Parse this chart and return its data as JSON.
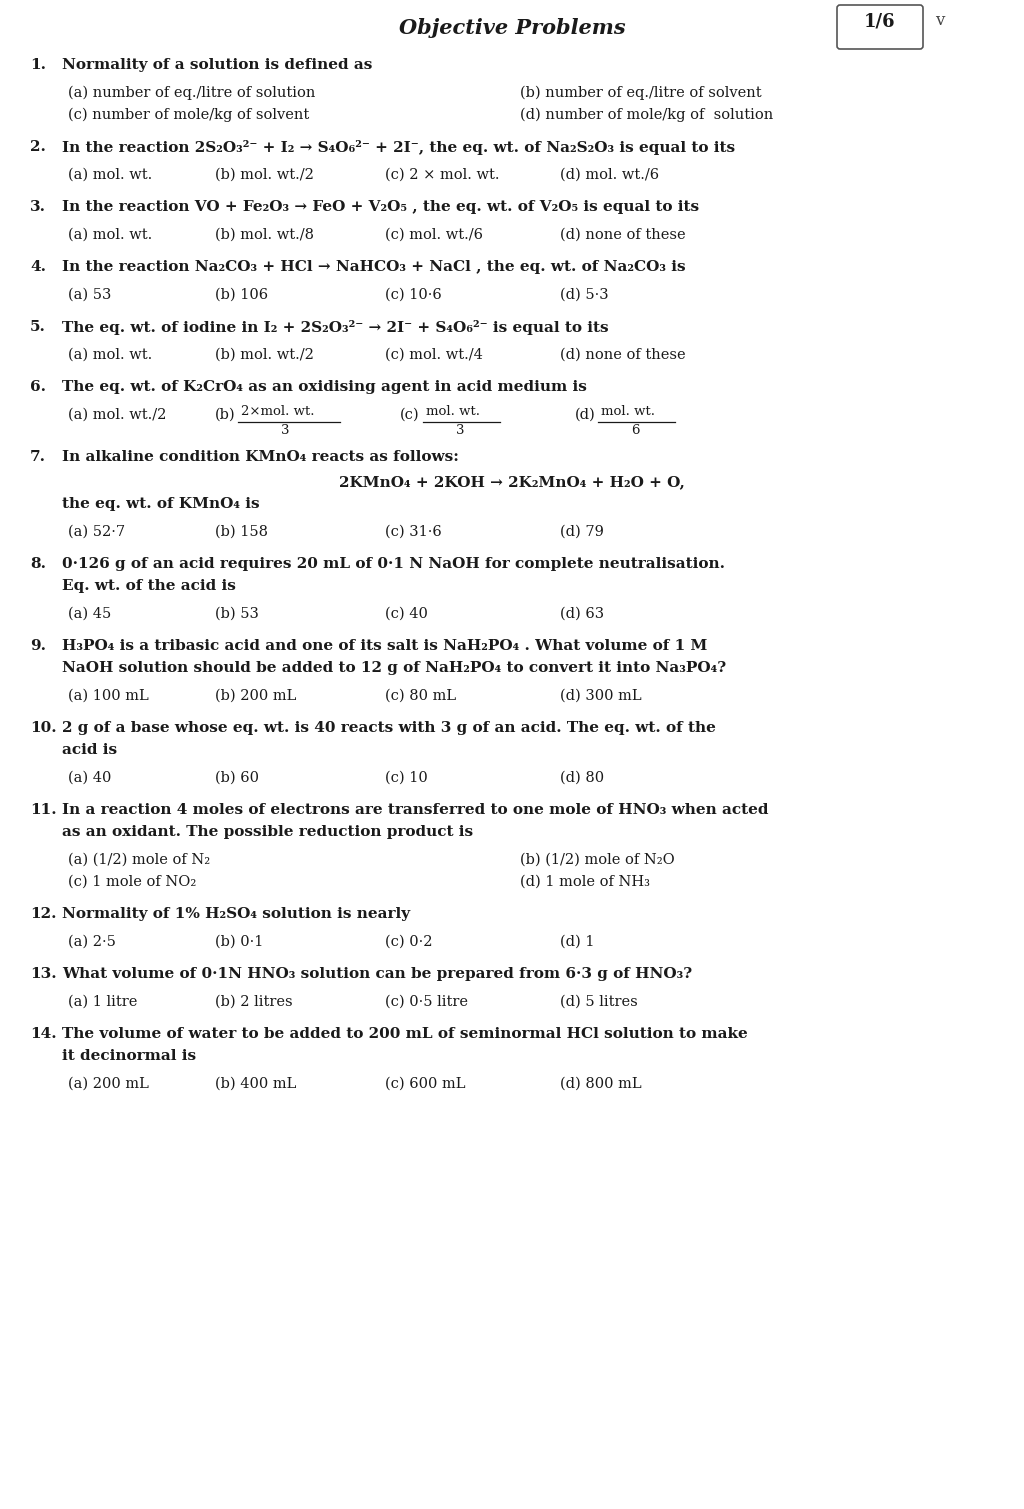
{
  "title": "Objective Problems",
  "page_indicator": "1/6",
  "background_color": "#ffffff",
  "text_color": "#1a1a1a",
  "title_fontsize": 15,
  "body_fontsize": 11,
  "small_fontsize": 10.5,
  "questions": [
    {
      "num": "1.",
      "text": "Normality of a solution is defined as",
      "type": "2col",
      "options": [
        "(a) number of eq./litre of solution",
        "(b) number of eq./litre of solvent",
        "(c) number of mole/kg of solvent",
        "(d) number of mole/kg of  solution"
      ]
    },
    {
      "num": "2.",
      "text": "In the reaction 2S₂O₃²⁻ + I₂ → S₄O₆²⁻ + 2I⁻, the eq. wt. of Na₂S₂O₃ is equal to its",
      "type": "1row",
      "options": [
        "(a) mol. wt.",
        "(b) mol. wt./2",
        "(c) 2 × mol. wt.",
        "(d) mol. wt./6"
      ]
    },
    {
      "num": "3.",
      "text": "In the reaction VO + Fe₂O₃ → FeO + V₂O₅ , the eq. wt. of V₂O₅ is equal to its",
      "type": "1row",
      "options": [
        "(a) mol. wt.",
        "(b) mol. wt./8",
        "(c) mol. wt./6",
        "(d) none of these"
      ]
    },
    {
      "num": "4.",
      "text": "In the reaction Na₂CO₃ + HCl → NaHCO₃ + NaCl , the eq. wt. of Na₂CO₃ is",
      "type": "1row",
      "options": [
        "(a) 53",
        "(b) 106",
        "(c) 10·6",
        "(d) 5·3"
      ]
    },
    {
      "num": "5.",
      "text": "The eq. wt. of iodine in I₂ + 2S₂O₃²⁻ → 2I⁻ + S₄O₆²⁻ is equal to its",
      "type": "1row",
      "options": [
        "(a) mol. wt.",
        "(b) mol. wt./2",
        "(c) mol. wt./4",
        "(d) none of these"
      ]
    },
    {
      "num": "6.",
      "text": "The eq. wt. of K₂CrO₄ as an oxidising agent in acid medium is",
      "type": "frac",
      "options": [
        "(a) mol. wt./2",
        "(b)",
        "(c)",
        "(d)"
      ],
      "frac_b_num": "2×mol. wt.",
      "frac_b_den": "3",
      "frac_c_num": "mol. wt.",
      "frac_c_den": "3",
      "frac_d_num": "mol. wt.",
      "frac_d_den": "6"
    },
    {
      "num": "7.",
      "text": "In alkaline condition KMnO₄ reacts as follows:",
      "reaction": "2KMnO₄ + 2KOH → 2K₂MnO₄ + H₂O + O,",
      "subtext": "the eq. wt. of KMnO₄ is",
      "type": "1row",
      "options": [
        "(a) 52·7",
        "(b) 158",
        "(c) 31·6",
        "(d) 79"
      ]
    },
    {
      "num": "8.",
      "text": "0·126 g of an acid requires 20 mL of 0·1 N NaOH for complete neutralisation.\nEq. wt. of the acid is",
      "type": "1row",
      "options": [
        "(a) 45",
        "(b) 53",
        "(c) 40",
        "(d) 63"
      ]
    },
    {
      "num": "9.",
      "text": "H₃PO₄ is a tribasic acid and one of its salt is NaH₂PO₄ . What volume of 1 M\nNaOH solution should be added to 12 g of NaH₂PO₄ to convert it into Na₃PO₄?",
      "type": "1row",
      "options": [
        "(a) 100 mL",
        "(b) 200 mL",
        "(c) 80 mL",
        "(d) 300 mL"
      ]
    },
    {
      "num": "10.",
      "text": "2 g of a base whose eq. wt. is 40 reacts with 3 g of an acid. The eq. wt. of the\nacid is",
      "type": "1row",
      "options": [
        "(a) 40",
        "(b) 60",
        "(c) 10",
        "(d) 80"
      ]
    },
    {
      "num": "11.",
      "text": "In a reaction 4 moles of electrons are transferred to one mole of HNO₃ when acted\nas an oxidant. The possible reduction product is",
      "type": "2col",
      "options": [
        "(a) (1/2) mole of N₂",
        "(b) (1/2) mole of N₂O",
        "(c) 1 mole of NO₂",
        "(d) 1 mole of NH₃"
      ]
    },
    {
      "num": "12.",
      "text": "Normality of 1% H₂SO₄ solution is nearly",
      "type": "1row",
      "options": [
        "(a) 2·5",
        "(b) 0·1",
        "(c) 0·2",
        "(d) 1"
      ]
    },
    {
      "num": "13.",
      "text": "What volume of 0·1N HNO₃ solution can be prepared from 6·3 g of HNO₃?",
      "type": "1row",
      "options": [
        "(a) 1 litre",
        "(b) 2 litres",
        "(c) 0·5 litre",
        "(d) 5 litres"
      ]
    },
    {
      "num": "14.",
      "text": "The volume of water to be added to 200 mL of seminormal HCl solution to make\nit decinormal is",
      "type": "1row",
      "options": [
        "(a) 200 mL",
        "(b) 400 mL",
        "(c) 600 mL",
        "(d) 800 mL"
      ]
    }
  ]
}
